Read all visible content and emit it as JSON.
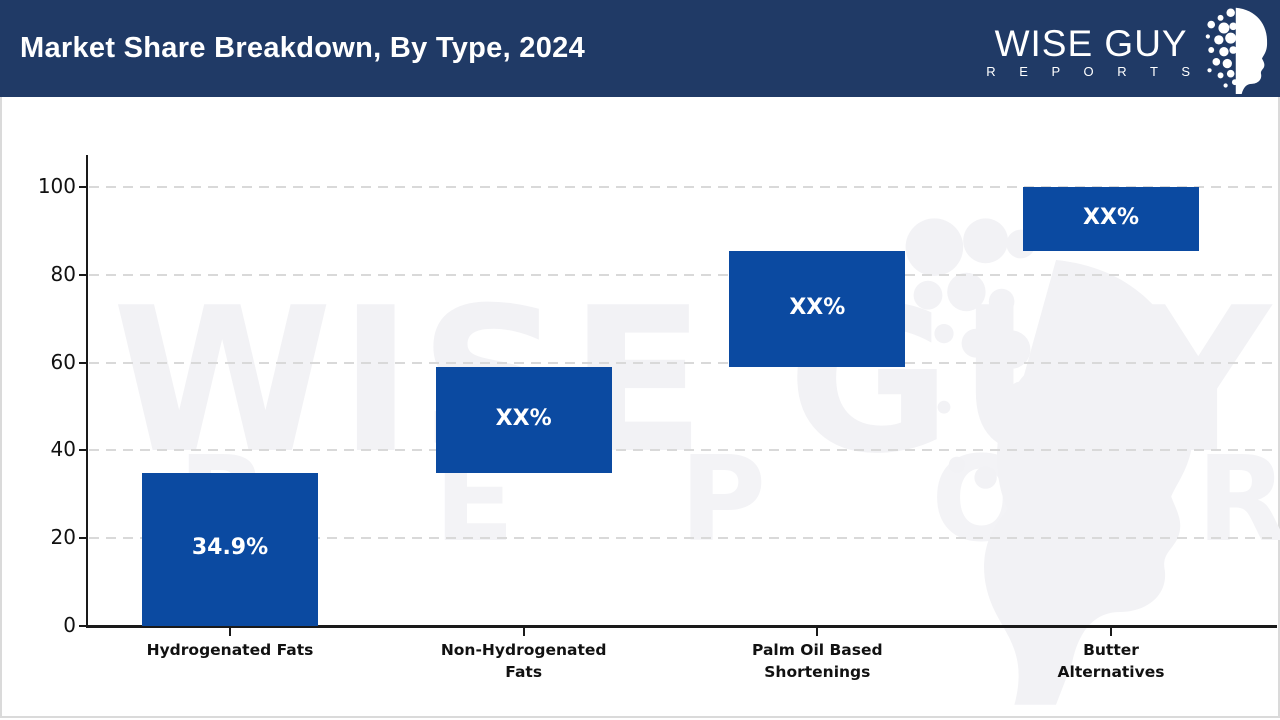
{
  "header": {
    "bg_color": "#203A66",
    "title": "Market Share Breakdown, By Type, 2024",
    "logo": {
      "name": "WISE GUY",
      "sub": "R E P O R T S",
      "head_icon": "dotted-face-profile"
    }
  },
  "watermark": {
    "big_text": "WISE GUY",
    "sub_text": "R E P O R T S"
  },
  "chart_data": {
    "type": "bar",
    "subtype": "floating_segment_waterfall",
    "title": "Market Share Breakdown, By Type, 2024",
    "categories": [
      "Hydrogenated Fats",
      "Non-Hydrogenated\nFats",
      "Palm Oil Based\nShortenings",
      "Butter\nAlternatives"
    ],
    "segments": [
      {
        "category": "Hydrogenated Fats",
        "start": 0,
        "end": 34.9,
        "label": "34.9%"
      },
      {
        "category": "Non-Hydrogenated Fats",
        "start": 34.9,
        "end": 59.0,
        "label": "XX%"
      },
      {
        "category": "Palm Oil Based Shortenings",
        "start": 59.0,
        "end": 85.4,
        "label": "XX%"
      },
      {
        "category": "Butter Alternatives",
        "start": 85.4,
        "end": 100,
        "label": "XX%"
      }
    ],
    "bar_color": "#0B4AA1",
    "bar_label_color": "#FFFFFF",
    "ylim": [
      0,
      100
    ],
    "yticks": [
      0,
      20,
      40,
      60,
      80,
      100
    ],
    "grid": "horizontal-dashed",
    "grid_color": "#D9D9D9",
    "axis_color": "#1A1A1A",
    "legend": "none"
  }
}
